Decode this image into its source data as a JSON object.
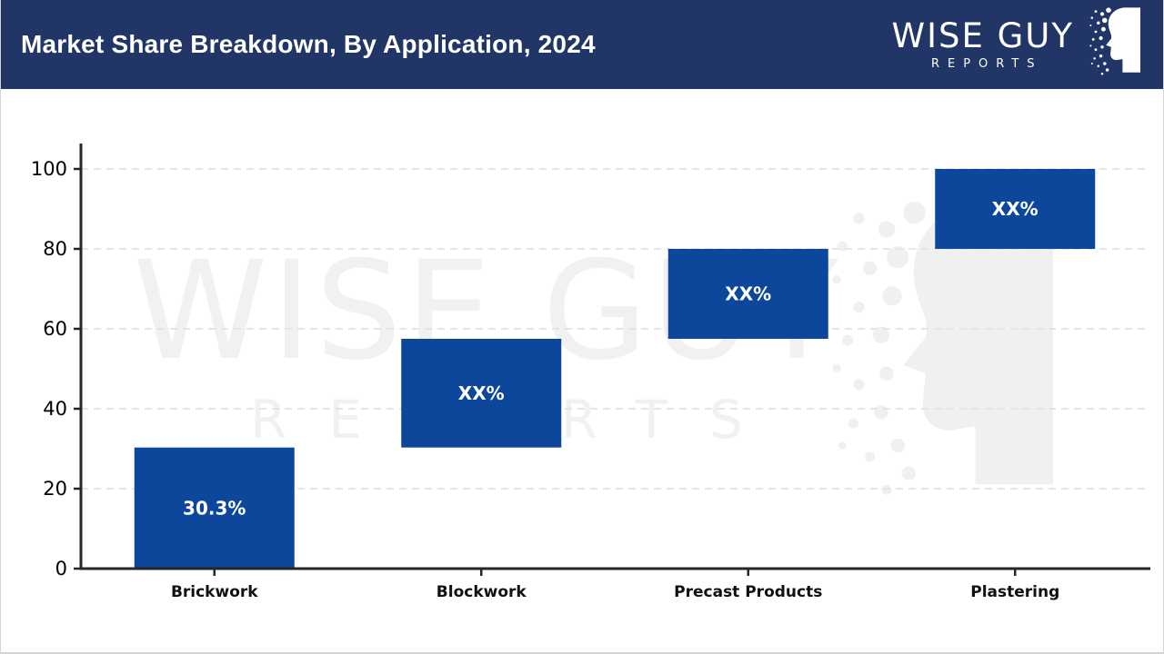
{
  "header": {
    "title": "Market Share Breakdown, By Application, 2024"
  },
  "logo": {
    "name": "WISE GUY",
    "subtext": "REPORTS"
  },
  "watermark": {
    "name": "WISE GUY",
    "subtext": "REPORTS"
  },
  "chart_data": {
    "type": "bar",
    "subtype": "waterfall",
    "title": "Market Share Breakdown, By Application, 2024",
    "categories": [
      "Brickwork",
      "Blockwork",
      "Precast Products",
      "Plastering"
    ],
    "series": [
      {
        "name": "Market Share (%)",
        "segments": [
          {
            "category": "Brickwork",
            "start": 0,
            "end": 30.3,
            "label": "30.3%"
          },
          {
            "category": "Blockwork",
            "start": 30.3,
            "end": 57.5,
            "label": "XX%"
          },
          {
            "category": "Precast Products",
            "start": 57.5,
            "end": 80,
            "label": "XX%"
          },
          {
            "category": "Plastering",
            "start": 80,
            "end": 100,
            "label": "XX%"
          }
        ]
      }
    ],
    "xlabel": "",
    "ylabel": "",
    "ylim": [
      0,
      105
    ],
    "yticks": [
      0,
      20,
      40,
      60,
      80,
      100
    ],
    "grid": "dashed-horizontal",
    "legend": "none",
    "bar_color": "#0d479b",
    "bar_label_color": "#ffffff",
    "axis_color": "#262626",
    "grid_color": "#e2e2e2",
    "header_bg": "#213666"
  }
}
